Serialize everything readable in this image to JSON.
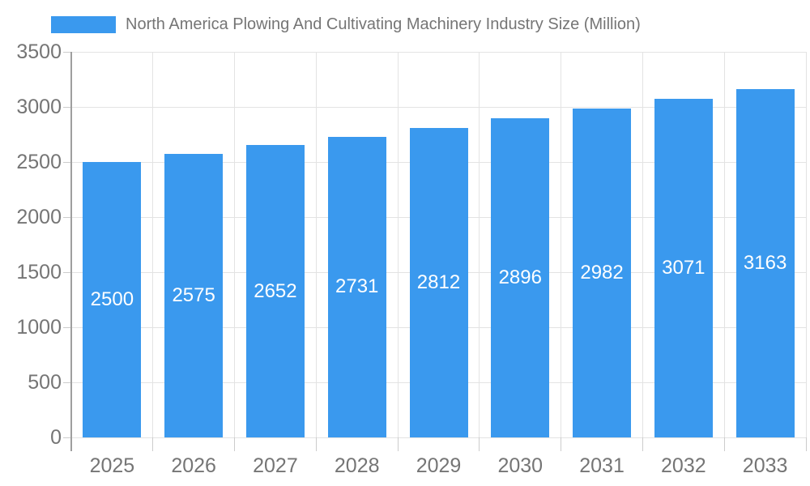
{
  "chart_data": {
    "type": "bar",
    "title": "North America Plowing And Cultivating Machinery Industry Size (Million)",
    "legend": {
      "position": "top",
      "entries": [
        "North America Plowing And Cultivating Machinery Industry Size (Million)"
      ]
    },
    "categories": [
      "2025",
      "2026",
      "2027",
      "2028",
      "2029",
      "2030",
      "2031",
      "2032",
      "2033"
    ],
    "values": [
      2500,
      2575,
      2652,
      2731,
      2812,
      2896,
      2982,
      3071,
      3163
    ],
    "value_labels_shown": true,
    "xlabel": "",
    "ylabel": "",
    "ylim": [
      0,
      3500
    ],
    "y_ticks": [
      0,
      500,
      1000,
      1500,
      2000,
      2500,
      3000,
      3500
    ],
    "grid": true,
    "colors": {
      "bar": "#3a99ee",
      "value_label": "#ffffff",
      "axis_label": "#757575",
      "grid_line": "#e3e3e3",
      "axis_line": "#9e9e9e",
      "tick": "#cccccc",
      "background": "#ffffff"
    }
  }
}
